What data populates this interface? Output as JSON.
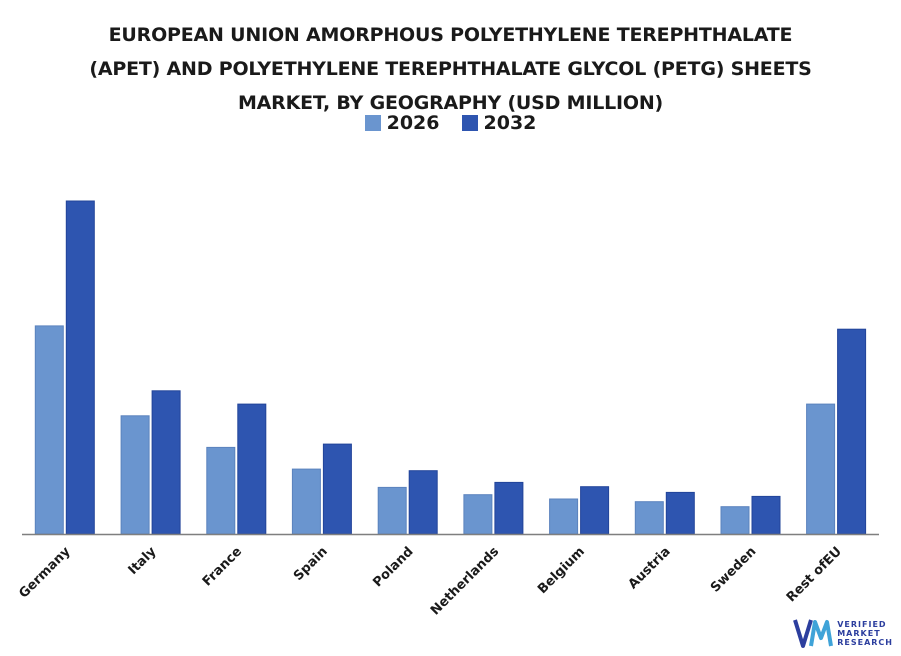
{
  "title_lines": [
    "EUROPEAN UNION AMORPHOUS POLYETHYLENE TEREPHTHALATE",
    "(APET) AND POLYETHYLENE TEREPHTHALATE GLYCOL (PETG) SHEETS",
    "MARKET, BY GEOGRAPHY (USD MILLION)"
  ],
  "colors": {
    "series_2026": "#6a95cf",
    "series_2032": "#2e55b0",
    "axis": "#7f7f7f"
  },
  "watermark": {
    "line1": "VERIFIED",
    "line2": "MARKET",
    "line3": "RESEARCH"
  },
  "chart_data": {
    "type": "bar",
    "title": "EUROPEAN UNION AMORPHOUS POLYETHYLENE TEREPHTHALATE (APET) AND POLYETHYLENE TEREPHTHALATE GLYCOL (PETG) SHEETS MARKET, BY GEOGRAPHY (USD MILLION)",
    "categories": [
      "Germany",
      "Italy",
      "France",
      "Spain",
      "Poland",
      "Netherlands",
      "Belgium",
      "Austria",
      "Sweden",
      "Rest ofEU"
    ],
    "series": [
      {
        "name": "2026",
        "values": [
          62.5,
          35.5,
          26,
          19.5,
          14,
          11.8,
          10.5,
          9.7,
          8.2,
          39
        ]
      },
      {
        "name": "2032",
        "values": [
          100,
          43,
          39,
          27,
          19,
          15.5,
          14.2,
          12.5,
          11.3,
          61.5
        ]
      }
    ],
    "ylim": [
      0,
      100
    ],
    "legend_position": "top-center",
    "grid": false
  }
}
